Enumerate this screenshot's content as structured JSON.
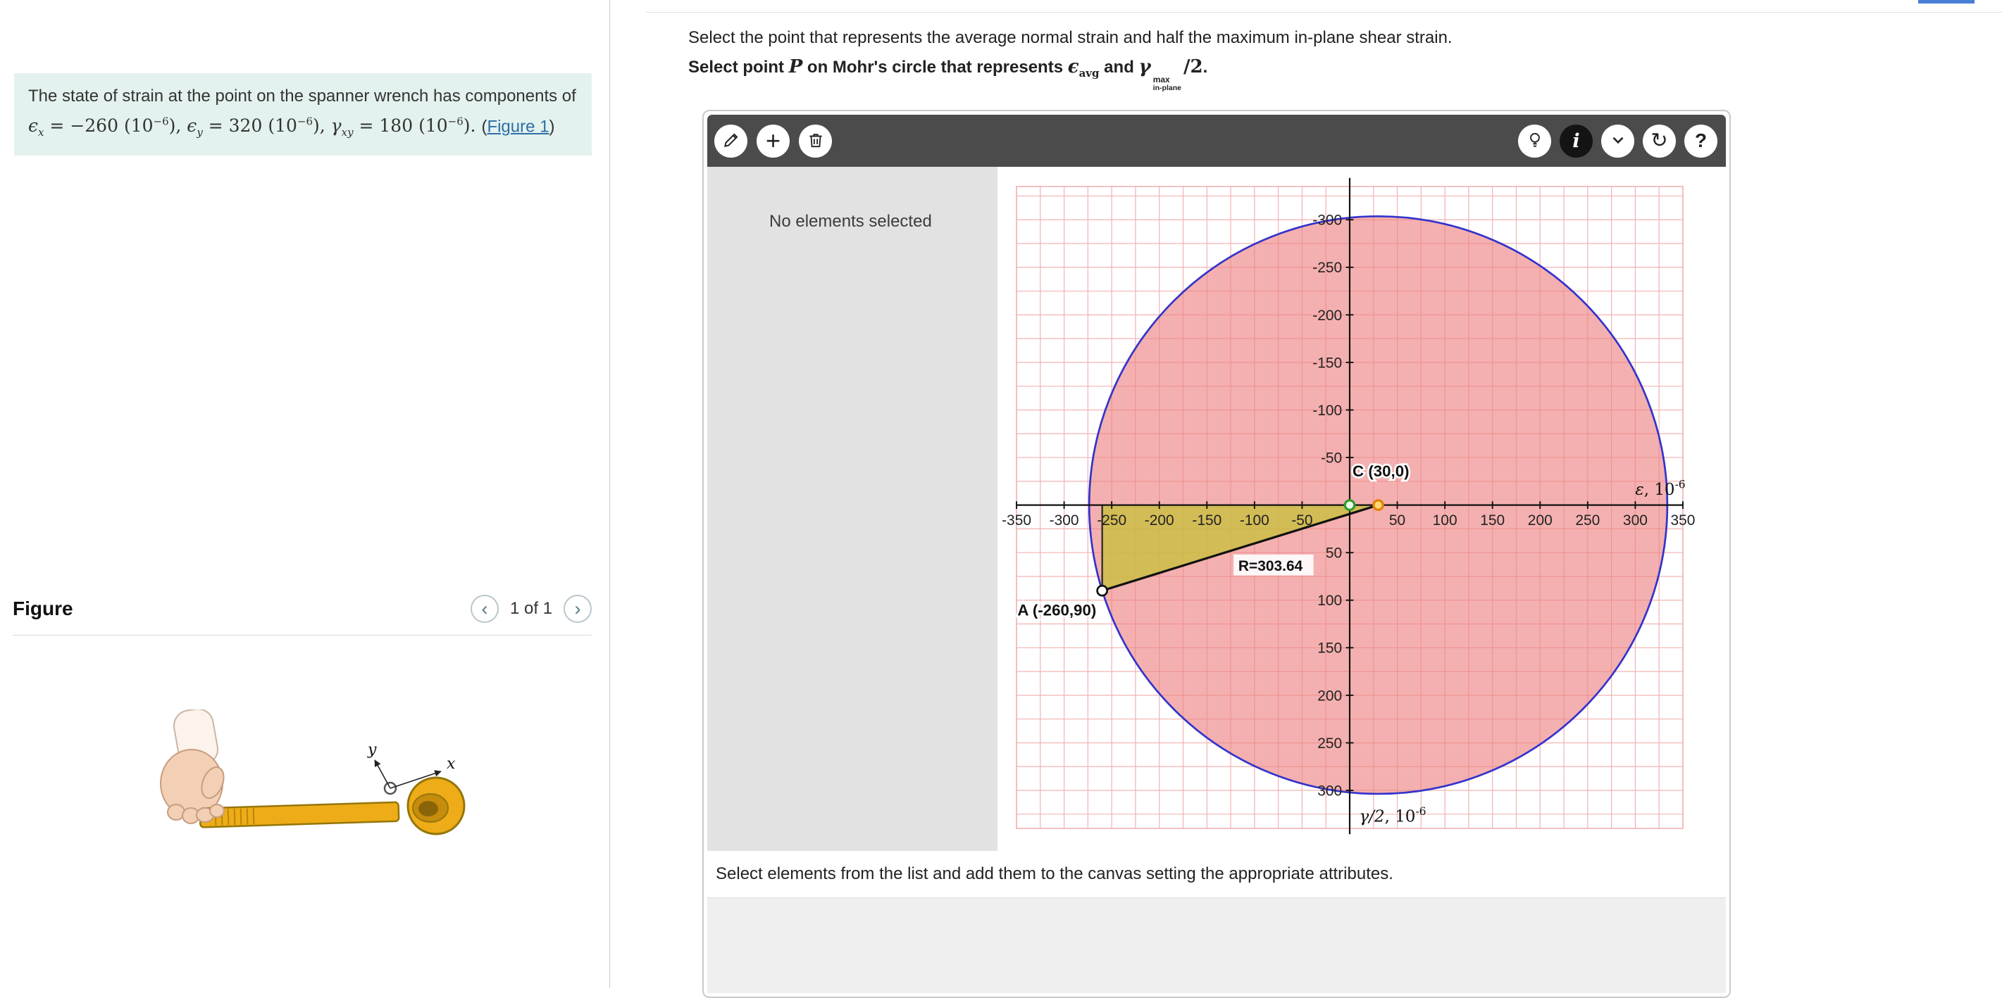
{
  "left": {
    "problem": {
      "line1": "The state of strain at the point on the spanner wrench has components of",
      "terms": [
        {
          "sym": "ϵ",
          "sub": "x",
          "val": " = −260 ",
          "base": "(10",
          "exp": "−6",
          "close": "), "
        },
        {
          "sym": "ϵ",
          "sub": "y",
          "val": " = 320 ",
          "base": "(10",
          "exp": "−6",
          "close": "), "
        },
        {
          "sym": "γ",
          "sub": "xy",
          "val": " = 180 ",
          "base": "(10",
          "exp": "−6",
          "close": "). "
        }
      ],
      "fig_open": "(",
      "fig_link": "Figure 1",
      "fig_close": ")"
    },
    "figure": {
      "title": "Figure",
      "pager": "1 of 1",
      "prev": "‹",
      "next": "›"
    },
    "wrench": {
      "x_label": "x",
      "y_label": "y"
    }
  },
  "right": {
    "instruction1": "Select the point that represents the average normal strain and half the maximum in-plane shear strain.",
    "instruction2": {
      "pre": "Select point ",
      "p": "P",
      "mid": " on Mohr's circle that represents ",
      "eps": "ϵ",
      "eps_sub": "avg",
      "and": " and ",
      "gamma": "γ",
      "gamma_sup": "max",
      "gamma_sub": "in-plane",
      "slash": "/2",
      "end": "."
    },
    "widget": {
      "toolbar": {
        "plus": "+",
        "info": "i",
        "redo": "↻",
        "question": "?"
      },
      "no_selection": "No elements selected",
      "footer": "Select elements from the list and add them to the canvas setting the appropriate attributes."
    }
  },
  "chart_data": {
    "type": "mohr-circle",
    "x_range": [
      -350,
      350
    ],
    "y_range": [
      -335,
      340
    ],
    "minor_step": 25,
    "x_ticks": [
      -350,
      -300,
      -250,
      -200,
      -150,
      -100,
      -50,
      50,
      100,
      150,
      200,
      250,
      300,
      350
    ],
    "y_ticks": [
      -300,
      -250,
      -200,
      -150,
      -100,
      -50,
      50,
      100,
      150,
      200,
      250,
      300
    ],
    "x_axis": {
      "sym": "ε",
      "rest": ", 10",
      "exp": "-6"
    },
    "y_axis": {
      "sym": "γ/2",
      "rest": ", 10",
      "exp": "-6"
    },
    "circle": {
      "cx": 30,
      "cy": 0,
      "r": 303.64
    },
    "triangle": [
      [
        -260,
        0
      ],
      [
        -260,
        90
      ],
      [
        30,
        0
      ]
    ],
    "points": [
      {
        "name": "point-a",
        "x": -260,
        "y": 90,
        "r": 5.2,
        "stroke": "#111111",
        "width": 2,
        "fill": "#ffffff"
      },
      {
        "name": "origin-point",
        "x": 0,
        "y": 0,
        "r": 5,
        "stroke": "#2f9e2f",
        "width": 2.4,
        "fill": "#eefaee"
      },
      {
        "name": "point-c",
        "x": 30,
        "y": 0,
        "r": 5,
        "stroke": "#e08200",
        "width": 2.4,
        "fill": "#ffd977"
      }
    ],
    "labels": [
      {
        "name": "point-a-label",
        "text": "A (-260,90)",
        "x": -349,
        "y": 116
      },
      {
        "name": "point-c-label",
        "text": "C (30,0)",
        "x": 3,
        "y": -30
      }
    ],
    "r_label": {
      "text": "R=303.64",
      "x": -117,
      "y": 69
    },
    "colors": {
      "grid": "#f2b3b3",
      "circle_fill": "#ee7f7f",
      "circle_stroke": "#3333cc",
      "tri_fill": "#c9bf3e",
      "axis": "#111111"
    }
  }
}
